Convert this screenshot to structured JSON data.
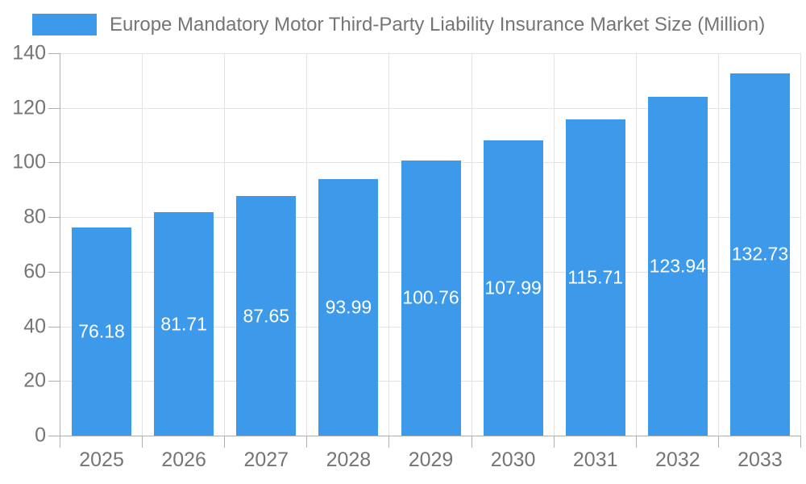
{
  "legend": {
    "label": "Europe Mandatory Motor Third-Party Liability Insurance Market Size (Million)"
  },
  "chart_data": {
    "type": "bar",
    "title": "Europe Mandatory Motor Third-Party Liability Insurance Market Size (Million)",
    "categories": [
      "2025",
      "2026",
      "2027",
      "2028",
      "2029",
      "2030",
      "2031",
      "2032",
      "2033"
    ],
    "series": [
      {
        "name": "Europe Mandatory Motor Third-Party Liability Insurance Market Size (Million)",
        "values": [
          76.18,
          81.71,
          87.65,
          93.99,
          100.76,
          107.99,
          115.71,
          123.94,
          132.73
        ]
      }
    ],
    "value_labels": [
      "76.18",
      "81.71",
      "87.65",
      "93.99",
      "100.76",
      "107.99",
      "115.71",
      "123.94",
      "132.73"
    ],
    "xlabel": "",
    "ylabel": "",
    "ylim": [
      0,
      140
    ],
    "yticks": [
      0,
      20,
      40,
      60,
      80,
      100,
      120,
      140
    ],
    "grid": true,
    "legend_position": "top-left",
    "colors": {
      "bar": "#3D9AEB",
      "bar_value_text": "#ffffff",
      "axis_text": "#757575",
      "legend_text": "#757575",
      "gridline": "#e3e3e3",
      "axis_line": "#b0b0b0",
      "background": "#ffffff"
    }
  }
}
